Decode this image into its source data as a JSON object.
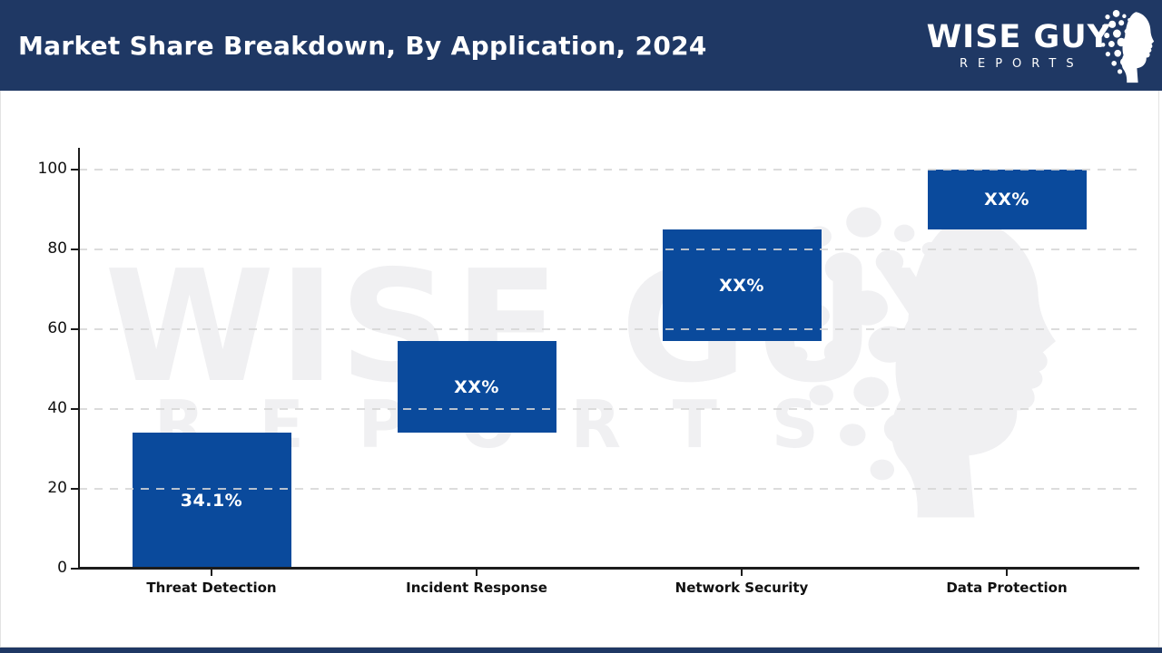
{
  "header": {
    "title": "Market Share Breakdown, By Application, 2024",
    "logo": {
      "line1": "WISE GUY",
      "line2": "REPORTS"
    }
  },
  "watermark": {
    "line1": "WISE GUY",
    "line2": "REPORTS"
  },
  "colors": {
    "header_navy": "#1f3864",
    "bar_blue": "#0a4a9c",
    "gridline": "#d6d6d6",
    "axis": "#1c1c1c",
    "bar_label_text": "#ffffff",
    "watermark_gray": "#f0f0f2"
  },
  "chart_data": {
    "type": "bar",
    "variant": "floating_waterfall",
    "title": "Market Share Breakdown, By Application, 2024",
    "categories": [
      "Threat Detection",
      "Incident Response",
      "Network Security",
      "Data Protection"
    ],
    "segments": [
      {
        "category": "Threat Detection",
        "start": 0,
        "end": 34.1,
        "label": "34.1%"
      },
      {
        "category": "Incident Response",
        "start": 34.1,
        "end": 57,
        "label": "XX%"
      },
      {
        "category": "Network Security",
        "start": 57,
        "end": 85,
        "label": "XX%"
      },
      {
        "category": "Data Protection",
        "start": 85,
        "end": 100,
        "label": "XX%"
      }
    ],
    "bar_labels": [
      "34.1%",
      "XX%",
      "XX%",
      "XX%"
    ],
    "ylim": [
      0,
      100
    ],
    "yticks": [
      0,
      20,
      40,
      60,
      80,
      100
    ],
    "xlabel": "",
    "ylabel": "",
    "grid": {
      "axis": "y",
      "style": "dashed"
    },
    "legend": null
  }
}
